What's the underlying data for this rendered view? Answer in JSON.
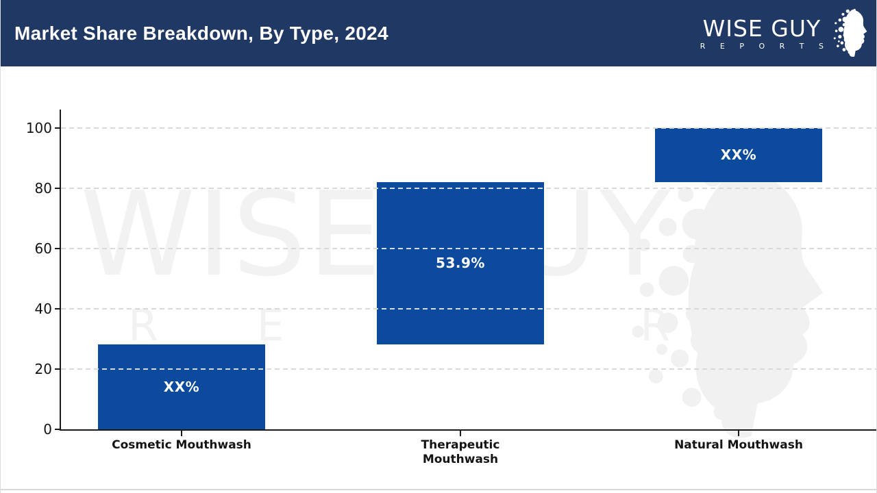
{
  "header": {
    "title": "Market Share Breakdown, By Type, 2024",
    "logo": {
      "name": "WISE GUY",
      "sub": "R E P O R T S"
    }
  },
  "icons": {
    "logo_face": "dotted-head-profile-icon"
  },
  "watermark": {
    "name": "WISE GUY",
    "sub": "R E P O R T S"
  },
  "colors": {
    "header_bg": "#203864",
    "bar": "#0b4a9c",
    "bar_label": "#ffffff",
    "grid": "#d9d9d9",
    "axis": "#1a1a1a",
    "watermark": "#f2f2f2"
  },
  "chart_data": {
    "type": "bar",
    "subtype": "stacked-waterfall",
    "title": "Market Share Breakdown, By Type, 2024",
    "xlabel": "",
    "ylabel": "",
    "categories": [
      "Cosmetic Mouthwash",
      "Therapeutic Mouthwash",
      "Natural Mouthwash"
    ],
    "category_display": [
      [
        "Cosmetic Mouthwash"
      ],
      [
        "Therapeutic",
        "Mouthwash"
      ],
      [
        "Natural Mouthwash"
      ]
    ],
    "segments": [
      {
        "category": "Cosmetic Mouthwash",
        "start": 0,
        "end": 28.2,
        "value_label": "XX%"
      },
      {
        "category": "Therapeutic Mouthwash",
        "start": 28.2,
        "end": 82.1,
        "value_label": "53.9%"
      },
      {
        "category": "Natural Mouthwash",
        "start": 82.1,
        "end": 100,
        "value_label": "XX%"
      }
    ],
    "yticks": [
      0,
      20,
      40,
      60,
      80,
      100
    ],
    "ylim": [
      0,
      105
    ],
    "grid": "horizontal-dashed, drawn above bars",
    "legend": "none"
  }
}
